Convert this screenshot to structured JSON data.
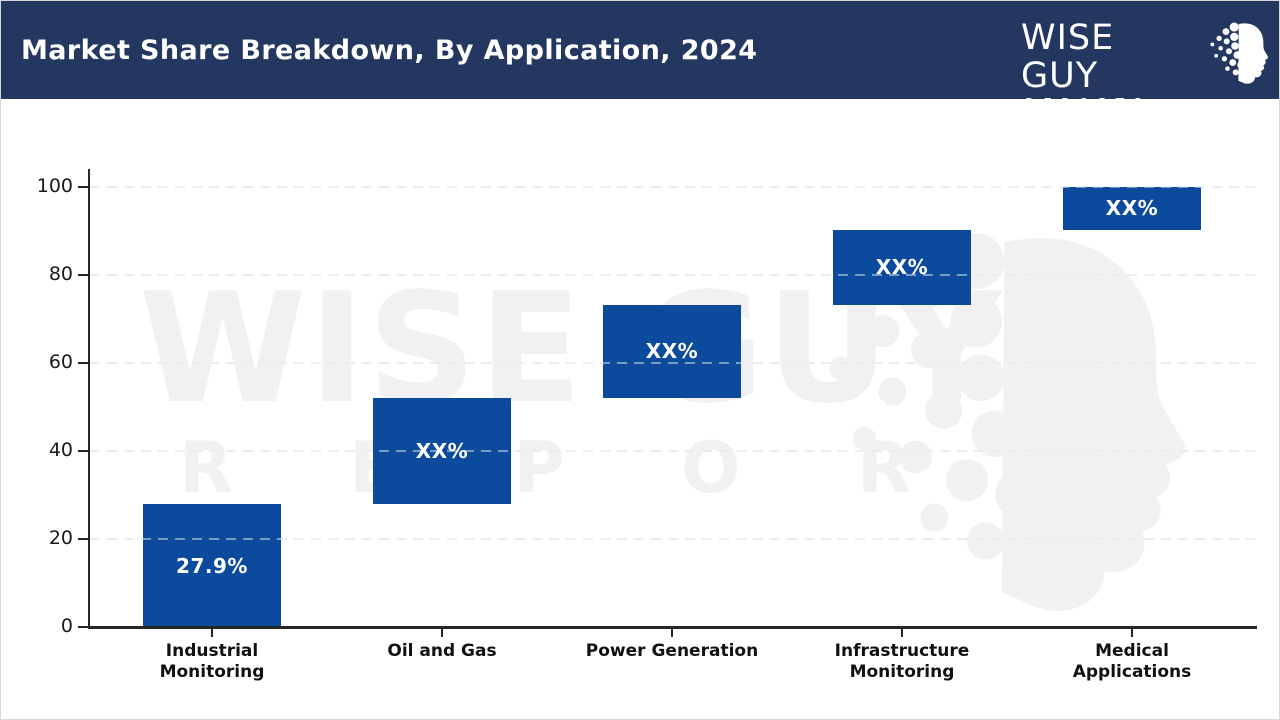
{
  "header": {
    "title": "Market Share Breakdown, By Application, 2024",
    "logo": {
      "line1": "WISE GUY",
      "line2": "REPORTS"
    }
  },
  "watermark": {
    "line1": "WISE GUY",
    "line2": "R E P O R T S"
  },
  "colors": {
    "header_bg": "#233760",
    "bar": "#0b4a9d",
    "axis": "#262626",
    "grid": "#dcdcdc",
    "watermark": "#f1f1f4"
  },
  "chart_data": {
    "type": "bar",
    "subtype": "waterfall",
    "title": "Market Share Breakdown, By Application, 2024",
    "categories": [
      "Industrial\nMonitoring",
      "Oil and Gas",
      "Power Generation",
      "Infrastructure\nMonitoring",
      "Medical\nApplications"
    ],
    "segments": [
      {
        "category": "Industrial Monitoring",
        "start": 0,
        "end": 27.9,
        "label": "27.9%"
      },
      {
        "category": "Oil and Gas",
        "start": 27.9,
        "end": 52.1,
        "label": "XX%"
      },
      {
        "category": "Power Generation",
        "start": 52.1,
        "end": 73.2,
        "label": "XX%"
      },
      {
        "category": "Infrastructure Monitoring",
        "start": 73.2,
        "end": 90.3,
        "label": "XX%"
      },
      {
        "category": "Medical Applications",
        "start": 90.3,
        "end": 100,
        "label": "XX%"
      }
    ],
    "yticks": [
      0,
      20,
      40,
      60,
      80,
      100
    ],
    "ylim": [
      0,
      100
    ],
    "xlabel": "",
    "ylabel": "",
    "grid": "horizontal-dashed",
    "legend": "none"
  }
}
